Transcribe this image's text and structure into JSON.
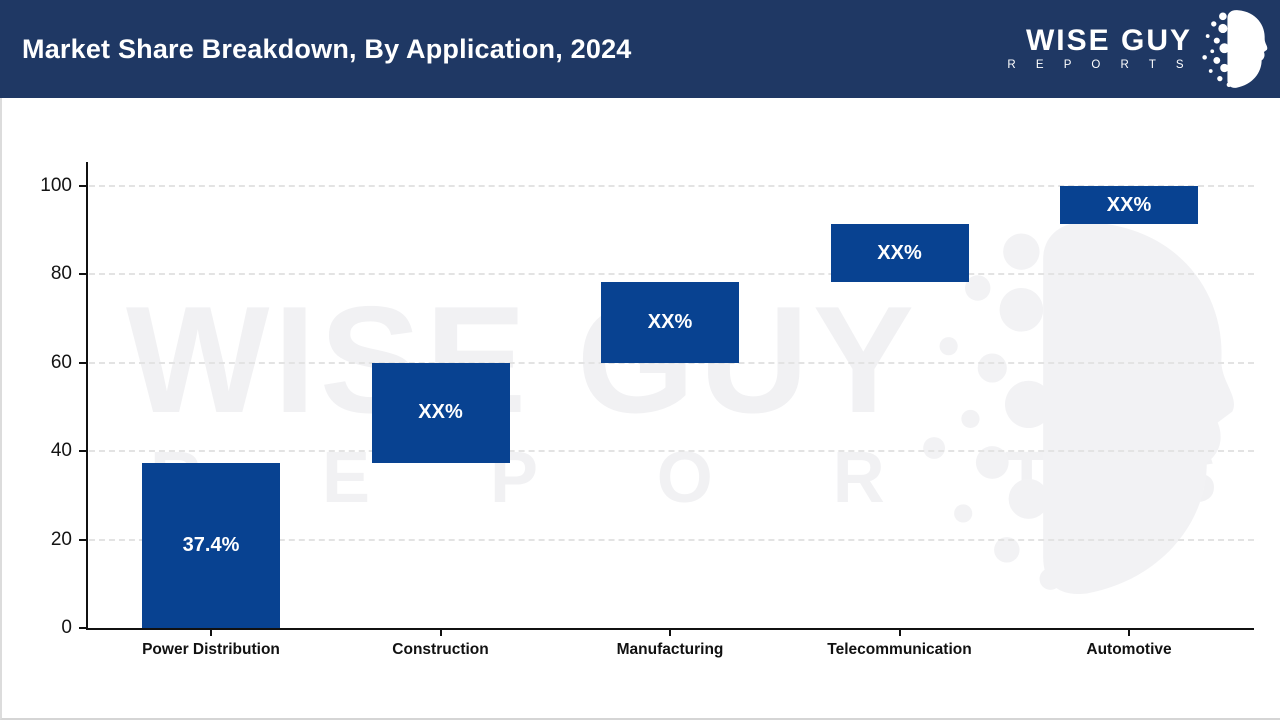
{
  "header": {
    "title": "Market Share Breakdown, By Application, 2024",
    "logo": {
      "wordmark": "WISE GUY",
      "subtext": "R E P O R T S",
      "face_icon": "dotted-profile-face"
    }
  },
  "watermark": {
    "wordmark": "WISE GUY",
    "subtext": "R E P O R T S",
    "face_icon": "dotted-profile-face"
  },
  "chart_data": {
    "type": "bar",
    "subtype": "floating-waterfall",
    "title": "Market Share Breakdown, By Application, 2024",
    "categories": [
      "Power Distribution",
      "Construction",
      "Manufacturing",
      "Telecommunication",
      "Automotive"
    ],
    "series": [
      {
        "name": "Market share (%)",
        "segments": [
          {
            "category": "Power Distribution",
            "start": 0,
            "end": 37.4,
            "label": "37.4%"
          },
          {
            "category": "Construction",
            "start": 37.4,
            "end": 60.0,
            "label": "XX%"
          },
          {
            "category": "Manufacturing",
            "start": 60.0,
            "end": 78.3,
            "label": "XX%"
          },
          {
            "category": "Telecommunication",
            "start": 78.3,
            "end": 91.3,
            "label": "XX%"
          },
          {
            "category": "Automotive",
            "start": 91.3,
            "end": 100.0,
            "label": "XX%"
          }
        ]
      }
    ],
    "xlabel": "",
    "ylabel": "",
    "yticks": [
      0,
      20,
      40,
      60,
      80,
      100
    ],
    "ylim": [
      0,
      105
    ],
    "grid": "horizontal-dashed",
    "legend": "none",
    "colors": {
      "bar": "#084291",
      "bar_label": "#ffffff",
      "grid": "#e3e3e3",
      "axis": "#111111",
      "header_bg": "#1f3864",
      "watermark": "#f1f1f3"
    }
  }
}
